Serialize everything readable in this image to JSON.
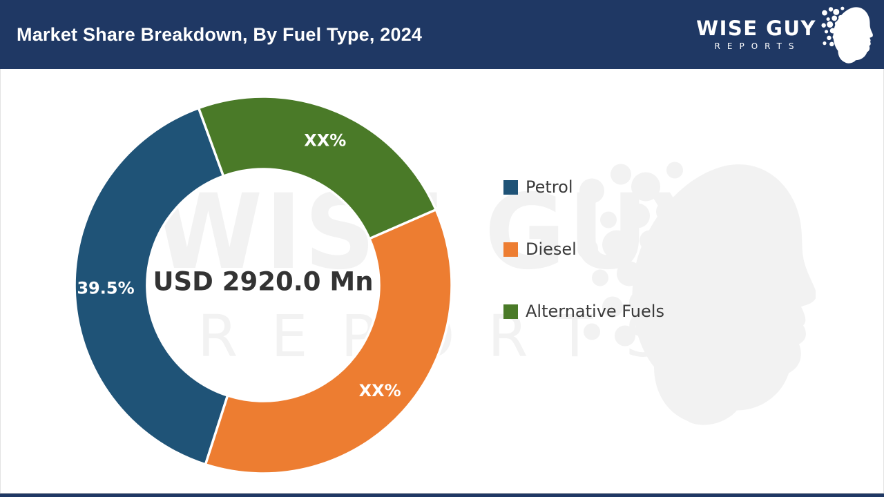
{
  "header": {
    "title": "Market Share Breakdown, By Fuel Type, 2024",
    "bg_color": "#1F3864",
    "logo": {
      "name": "WISE GUY",
      "sub": "REPORTS"
    }
  },
  "watermark": {
    "line1": "WISE GUY",
    "line2": "REPORTS"
  },
  "chart_data": {
    "type": "pie",
    "subtype": "donut",
    "title": "Market Share Breakdown, By Fuel Type, 2024",
    "center_label": "USD 2920.0 Mn",
    "legend_position": "right",
    "start_angle_deg": 110,
    "direction": "counterclockwise",
    "segments": [
      {
        "label": "Petrol",
        "display_value": "39.5%",
        "value_pct_est": 39.5,
        "color": "#1F5377"
      },
      {
        "label": "Diesel",
        "display_value": "XX%",
        "value_pct_est": 36.5,
        "color": "#ED7D31"
      },
      {
        "label": "Alternative Fuels",
        "display_value": "XX%",
        "value_pct_est": 24.0,
        "color": "#4A7A28"
      }
    ]
  }
}
